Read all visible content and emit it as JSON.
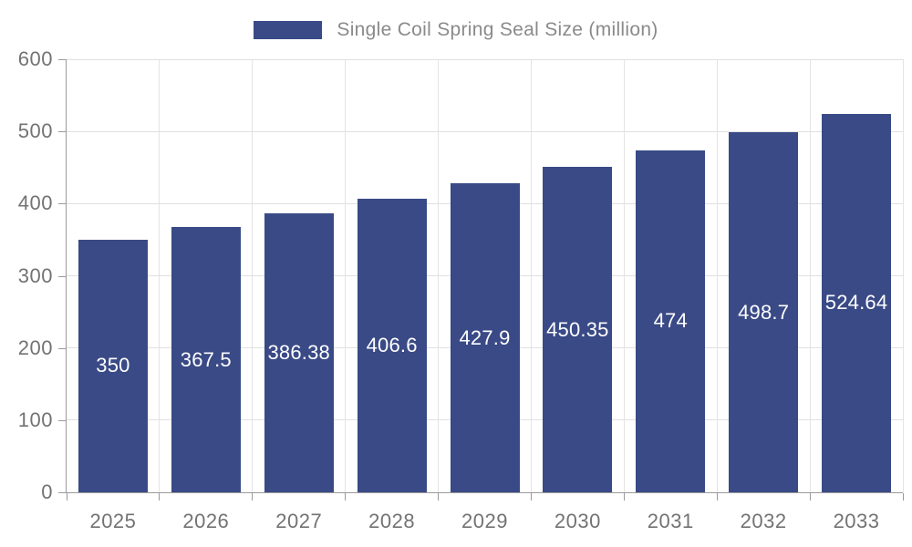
{
  "chart_data": {
    "type": "bar",
    "title": "Single Coil Spring Seal Size (million)",
    "legend": [
      "Single Coil Spring Seal Size (million)"
    ],
    "legend_position": "top",
    "categories": [
      "2025",
      "2026",
      "2027",
      "2028",
      "2029",
      "2030",
      "2031",
      "2032",
      "2033"
    ],
    "series": [
      {
        "name": "Single Coil Spring Seal Size (million)",
        "values": [
          350,
          367.5,
          386.38,
          406.6,
          427.9,
          450.35,
          474,
          498.7,
          524.64
        ]
      }
    ],
    "value_labels": [
      "350",
      "367.5",
      "386.38",
      "406.6",
      "427.9",
      "450.35",
      "474",
      "498.7",
      "524.64"
    ],
    "xlabel": "",
    "ylabel": "",
    "ylim": [
      0,
      600
    ],
    "yticks": [
      0,
      100,
      200,
      300,
      400,
      500,
      600
    ],
    "grid": true,
    "colors": {
      "bar": "#3a4a86",
      "bar_label": "#ffffff",
      "axis_line": "#9a9a9a",
      "axis_text": "#737373",
      "legend_text": "#8a8a8a",
      "gridline_h": "#e0e0e0",
      "gridline_v": "#e4e4e4",
      "background": "#ffffff"
    }
  }
}
